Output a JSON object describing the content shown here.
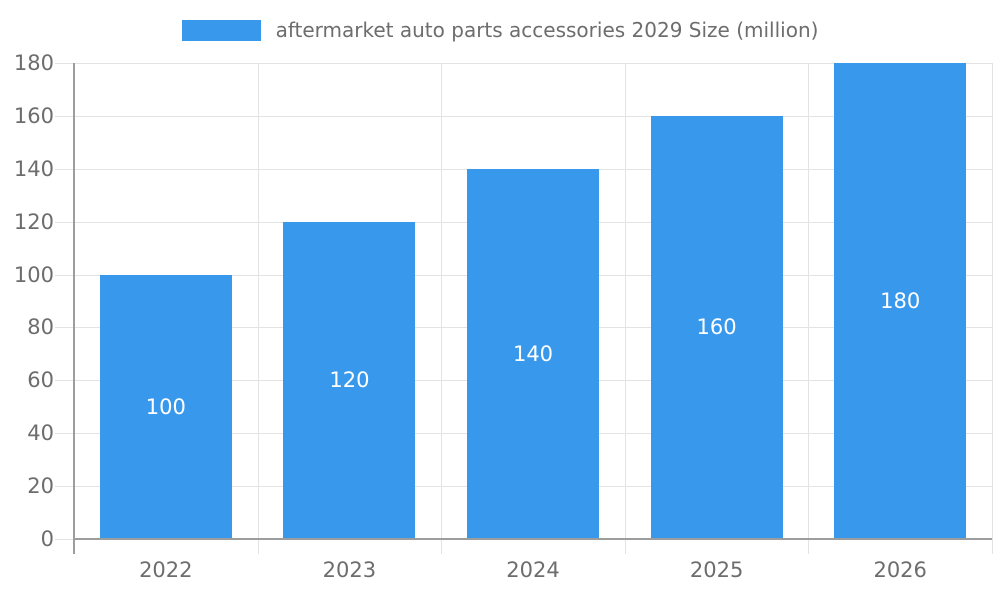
{
  "legend": {
    "label": "aftermarket auto parts accessories 2029 Size (million)"
  },
  "colors": {
    "bar": "#3899ec",
    "grid": "#e3e3e3",
    "axis": "#9d9d9d",
    "text": "#6d6d6d",
    "value_label": "#ffffff",
    "background": "#ffffff"
  },
  "chart_data": {
    "type": "bar",
    "categories": [
      "2022",
      "2023",
      "2024",
      "2025",
      "2026"
    ],
    "values": [
      100,
      120,
      140,
      160,
      180
    ],
    "series_name": "aftermarket auto parts accessories 2029 Size (million)",
    "title": "",
    "xlabel": "",
    "ylabel": "",
    "ylim": [
      0,
      180
    ],
    "ytick_step": 20,
    "legend_position": "top-center",
    "grid": true,
    "value_labels_position": "inside-center",
    "value_labels": [
      100,
      120,
      140,
      160,
      180
    ]
  }
}
